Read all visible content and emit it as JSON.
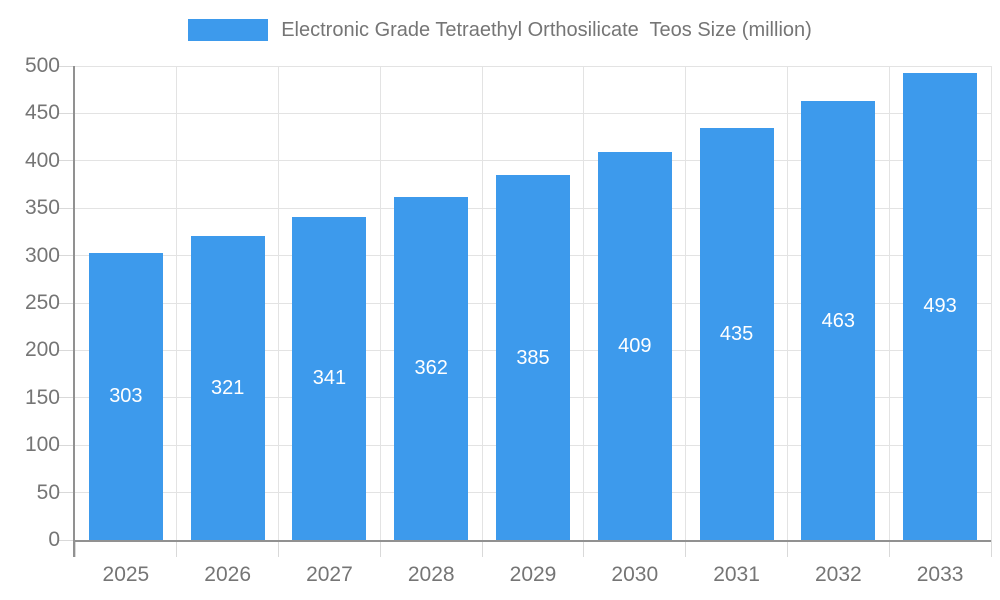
{
  "legend": {
    "label": "Electronic Grade Tetraethyl Orthosilicate  Teos Size (million)"
  },
  "chart_data": {
    "type": "bar",
    "categories": [
      "2025",
      "2026",
      "2027",
      "2028",
      "2029",
      "2030",
      "2031",
      "2032",
      "2033"
    ],
    "values": [
      303,
      321,
      341,
      362,
      385,
      409,
      435,
      463,
      493
    ],
    "series": [
      {
        "name": "Electronic Grade Tetraethyl Orthosilicate  Teos Size (million)",
        "values": [
          303,
          321,
          341,
          362,
          385,
          409,
          435,
          463,
          493
        ]
      }
    ],
    "title": "",
    "xlabel": "",
    "ylabel": "",
    "ylim": [
      0,
      500
    ],
    "ytick_step": 50,
    "yticks": [
      0,
      50,
      100,
      150,
      200,
      250,
      300,
      350,
      400,
      450,
      500
    ],
    "grid": true,
    "legend_position": "top",
    "bar_color": "#3d9aec",
    "value_label_color": "#ffffff",
    "axis_color": "#919191",
    "grid_color": "#e3e3e3",
    "tick_color": "#d9d9d9",
    "tick_label_color": "#757575"
  }
}
